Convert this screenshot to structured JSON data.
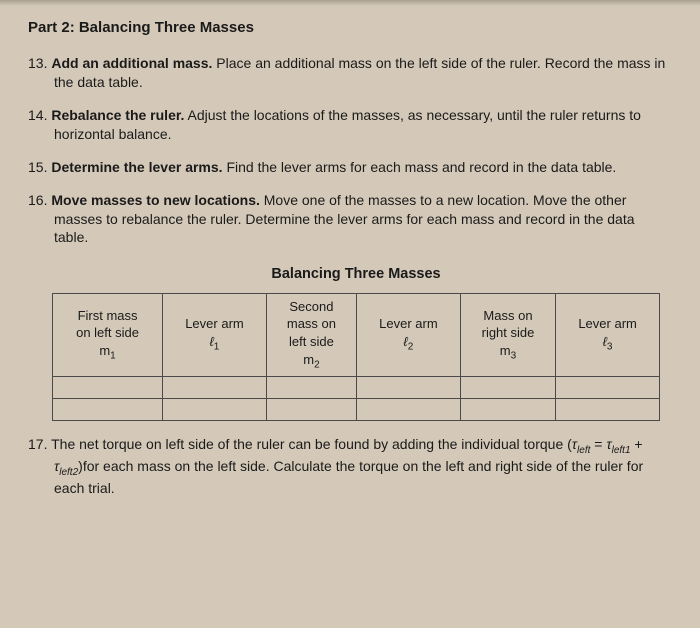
{
  "part_title": "Part 2: Balancing Three Masses",
  "steps": {
    "s13": {
      "num": "13.",
      "bold": "Add an additional mass.",
      "rest": " Place an additional mass on the left side of the ruler. Record the mass in the data table."
    },
    "s14": {
      "num": "14.",
      "bold": "Rebalance the ruler.",
      "rest": " Adjust the locations of the masses, as necessary, until the ruler returns to horizontal balance."
    },
    "s15": {
      "num": "15.",
      "bold": "Determine the lever arms.",
      "rest": " Find the lever arms for each mass and record in the data table."
    },
    "s16": {
      "num": "16.",
      "bold": "Move masses to new locations.",
      "rest": " Move one of the masses to a new location. Move the other masses to rebalance the ruler. Determine the lever arms for each mass and record in the data table."
    },
    "s17": {
      "num": "17.",
      "bold": "",
      "rest_pre": "The net torque on left side of the ruler can be found by adding the individual torque (",
      "rest_post": ")for each mass on the left side. Calculate the torque on the left and right side of the ruler for each trial."
    }
  },
  "table": {
    "title": "Balancing Three Masses",
    "headers": {
      "c1a": "First mass",
      "c1b": "on left side",
      "c1c": "m",
      "c1s": "1",
      "c2a": "Lever arm",
      "c2b": "ℓ",
      "c2s": "1",
      "c3a": "Second",
      "c3b": "mass on",
      "c3c": "left side",
      "c3d": "m",
      "c3s": "2",
      "c4a": "Lever arm",
      "c4b": "ℓ",
      "c4s": "2",
      "c5a": "Mass on",
      "c5b": "right side",
      "c5c": "m",
      "c5s": "3",
      "c6a": "Lever arm",
      "c6b": "ℓ",
      "c6s": "3"
    }
  },
  "formula": {
    "tau": "τ",
    "left": "left",
    "eq": " = ",
    "l1": "left1",
    "plus": " + ",
    "l2": "left2"
  }
}
